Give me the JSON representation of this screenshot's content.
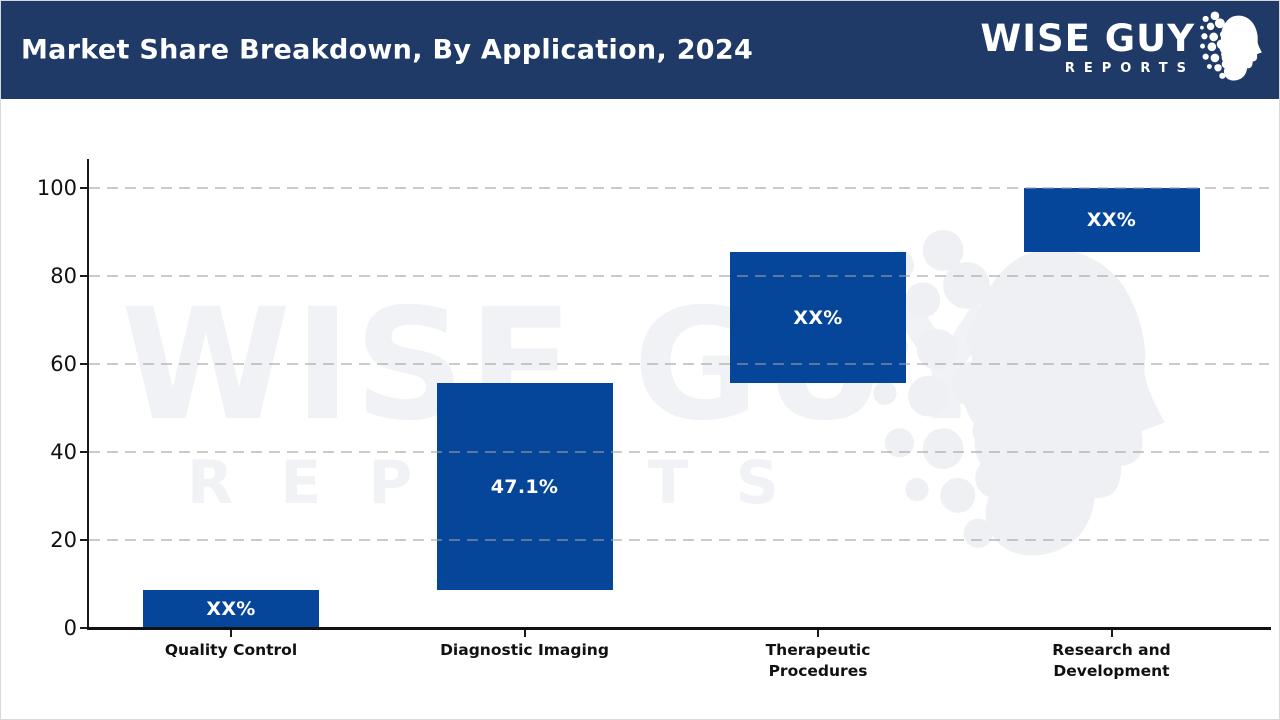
{
  "header": {
    "title": "Market Share Breakdown, By Application, 2024",
    "logo": {
      "line1": "WISE GUY",
      "line2": "REPORTS"
    }
  },
  "watermark": {
    "line1": "WISE GUY",
    "line2": "REPORTS"
  },
  "colors": {
    "header_navy": "#1f3a66",
    "bar_blue": "#05459a",
    "axis": "#1a1a1a",
    "grid": "#c8c8c8",
    "watermark_gray": "#f1f2f5"
  },
  "chart_data": {
    "type": "bar",
    "subtype": "waterfall",
    "title": "Market Share Breakdown, By Application, 2024",
    "xlabel": "",
    "ylabel": "",
    "ylim": [
      0,
      107
    ],
    "yticks": [
      0,
      20,
      40,
      60,
      80,
      100
    ],
    "grid": "horizontal-dashed",
    "legend": "none",
    "bar_color": "#05459a",
    "categories": [
      "Quality Control",
      "Diagnostic Imaging",
      "Therapeutic Procedures",
      "Research and Development"
    ],
    "segments": [
      {
        "category": "Quality Control",
        "from": 0,
        "to": 8.6,
        "label": "XX%"
      },
      {
        "category": "Diagnostic Imaging",
        "from": 8.6,
        "to": 55.7,
        "label": "47.1%",
        "value": 47.1
      },
      {
        "category": "Therapeutic Procedures",
        "from": 55.7,
        "to": 85.4,
        "label": "XX%"
      },
      {
        "category": "Research and Development",
        "from": 85.4,
        "to": 100,
        "label": "XX%"
      }
    ]
  }
}
